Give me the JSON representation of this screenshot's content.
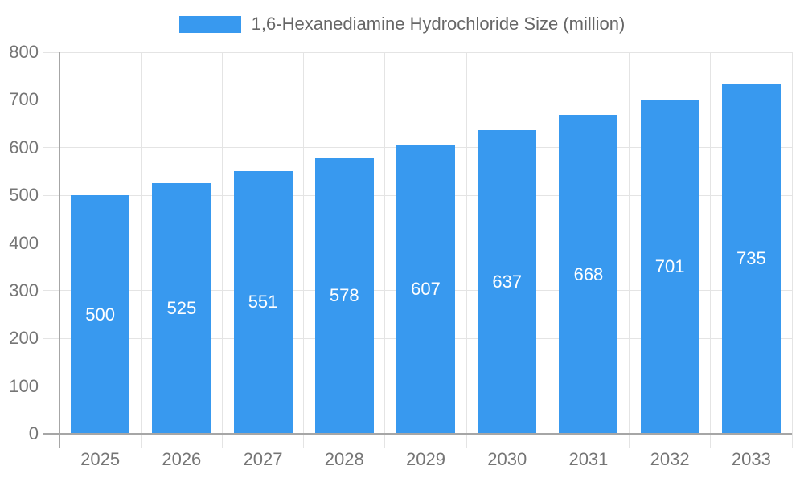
{
  "chart_data": {
    "type": "bar",
    "title": "1,6-Hexanediamine Hydrochloride Size (million)",
    "categories": [
      "2025",
      "2026",
      "2027",
      "2028",
      "2029",
      "2030",
      "2031",
      "2032",
      "2033"
    ],
    "values": [
      500,
      525,
      551,
      578,
      607,
      637,
      668,
      701,
      735
    ],
    "xlabel": "",
    "ylabel": "",
    "ylim": [
      0,
      800
    ],
    "yticks": [
      0,
      100,
      200,
      300,
      400,
      500,
      600,
      700,
      800
    ],
    "grid": true,
    "legend_position": "top-center",
    "colors": {
      "bar": "#3899EF",
      "bar_label_text": "#FFFFFF",
      "grid_line": "#E4E4E4",
      "axis_line": "#A6A6A6",
      "axis_text": "#757575",
      "legend_text": "#666666",
      "background": "#FFFFFF"
    }
  }
}
